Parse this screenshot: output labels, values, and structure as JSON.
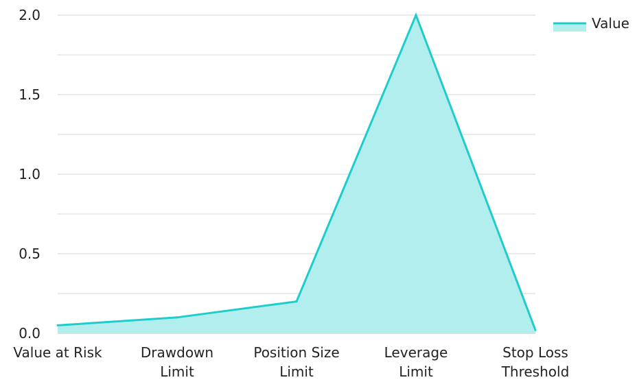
{
  "chart_data": {
    "type": "area",
    "categories": [
      "Value at Risk",
      "Drawdown Limit",
      "Position Size Limit",
      "Leverage Limit",
      "Stop Loss Threshold"
    ],
    "category_lines": [
      [
        "Value at Risk"
      ],
      [
        "Drawdown",
        "Limit"
      ],
      [
        "Position Size",
        "Limit"
      ],
      [
        "Leverage",
        "Limit"
      ],
      [
        "Stop Loss",
        "Threshold"
      ]
    ],
    "series": [
      {
        "name": "Value",
        "values": [
          0.05,
          0.1,
          0.2,
          2.0,
          0.02
        ]
      }
    ],
    "title": "",
    "xlabel": "",
    "ylabel": "",
    "ylim": [
      0,
      2.0
    ],
    "yticks": [
      "0.0",
      "0.5",
      "1.0",
      "1.5",
      "2.0"
    ],
    "grid": true,
    "legend": "top-right",
    "colors": {
      "line": "#1fcccc",
      "fill": "#b2eeee"
    }
  }
}
